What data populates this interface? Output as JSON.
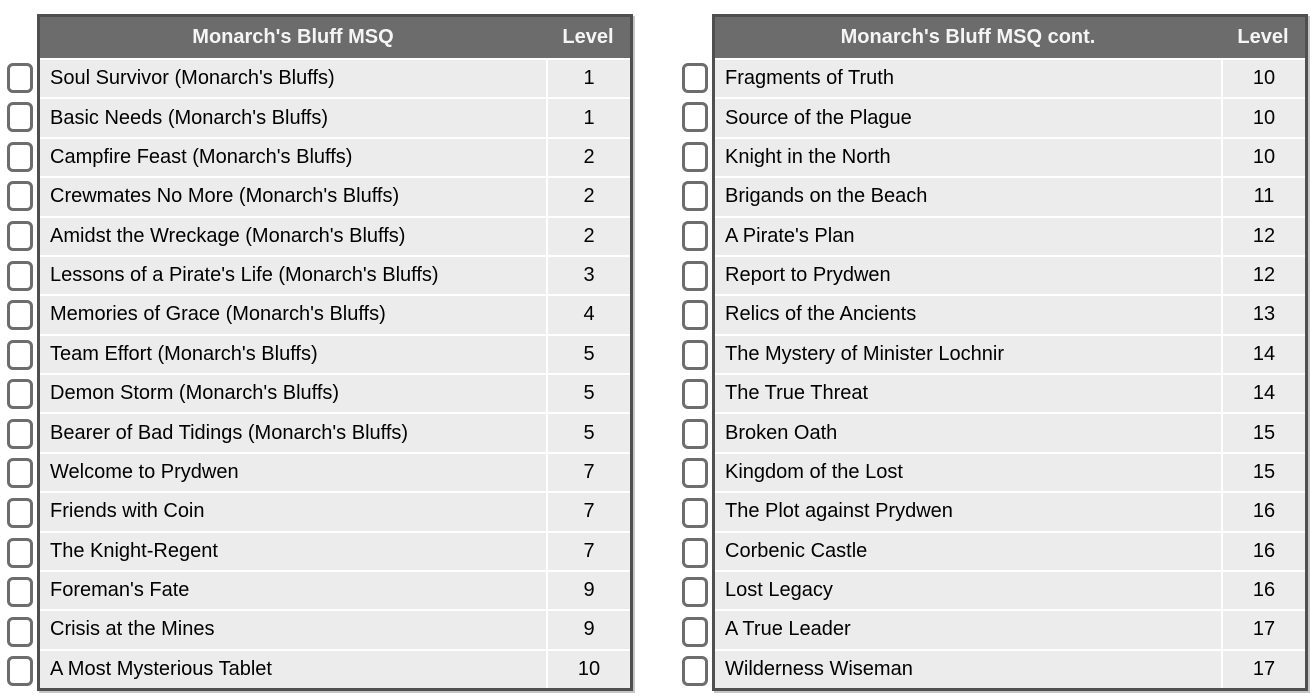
{
  "colors": {
    "header_bg": "#6c6c6c",
    "header_text": "#f5f5f5",
    "row_bg": "#ececec",
    "row_separator": "#ffffff",
    "table_border": "#4f4f4f",
    "checkbox_border": "#6d6d6d",
    "row_text": "#000000"
  },
  "tables": [
    {
      "title": "Monarch's Bluff MSQ",
      "level_header": "Level",
      "rows": [
        {
          "name": "Soul Survivor (Monarch's Bluffs)",
          "level": "1",
          "checked": false
        },
        {
          "name": "Basic Needs (Monarch's Bluffs)",
          "level": "1",
          "checked": false
        },
        {
          "name": "Campfire Feast (Monarch's Bluffs)",
          "level": "2",
          "checked": false
        },
        {
          "name": "Crewmates No More (Monarch's Bluffs)",
          "level": "2",
          "checked": false
        },
        {
          "name": "Amidst the Wreckage (Monarch's Bluffs)",
          "level": "2",
          "checked": false
        },
        {
          "name": "Lessons of a Pirate's Life (Monarch's Bluffs)",
          "level": "3",
          "checked": false
        },
        {
          "name": "Memories of Grace (Monarch's Bluffs)",
          "level": "4",
          "checked": false
        },
        {
          "name": "Team Effort (Monarch's Bluffs)",
          "level": "5",
          "checked": false
        },
        {
          "name": "Demon Storm (Monarch's Bluffs)",
          "level": "5",
          "checked": false
        },
        {
          "name": "Bearer of Bad Tidings (Monarch's Bluffs)",
          "level": "5",
          "checked": false
        },
        {
          "name": "Welcome to Prydwen",
          "level": "7",
          "checked": false
        },
        {
          "name": "Friends with Coin",
          "level": "7",
          "checked": false
        },
        {
          "name": "The Knight-Regent",
          "level": "7",
          "checked": false
        },
        {
          "name": "Foreman's Fate",
          "level": "9",
          "checked": false
        },
        {
          "name": "Crisis at the Mines",
          "level": "9",
          "checked": false
        },
        {
          "name": "A Most Mysterious Tablet",
          "level": "10",
          "checked": false
        }
      ]
    },
    {
      "title": "Monarch's Bluff MSQ cont.",
      "level_header": "Level",
      "rows": [
        {
          "name": "Fragments of Truth",
          "level": "10",
          "checked": false
        },
        {
          "name": "Source of the Plague",
          "level": "10",
          "checked": false
        },
        {
          "name": "Knight in the North",
          "level": "10",
          "checked": false
        },
        {
          "name": "Brigands on the Beach",
          "level": "11",
          "checked": false
        },
        {
          "name": "A Pirate's Plan",
          "level": "12",
          "checked": false
        },
        {
          "name": "Report to Prydwen",
          "level": "12",
          "checked": false
        },
        {
          "name": "Relics of the Ancients",
          "level": "13",
          "checked": false
        },
        {
          "name": "The Mystery of Minister Lochnir",
          "level": "14",
          "checked": false
        },
        {
          "name": "The True Threat",
          "level": "14",
          "checked": false
        },
        {
          "name": "Broken Oath",
          "level": "15",
          "checked": false
        },
        {
          "name": "Kingdom of the Lost",
          "level": "15",
          "checked": false
        },
        {
          "name": "The Plot against Prydwen",
          "level": "16",
          "checked": false
        },
        {
          "name": "Corbenic Castle",
          "level": "16",
          "checked": false
        },
        {
          "name": "Lost Legacy",
          "level": "16",
          "checked": false
        },
        {
          "name": "A True Leader",
          "level": "17",
          "checked": false
        },
        {
          "name": "Wilderness Wiseman",
          "level": "17",
          "checked": false
        }
      ]
    }
  ]
}
